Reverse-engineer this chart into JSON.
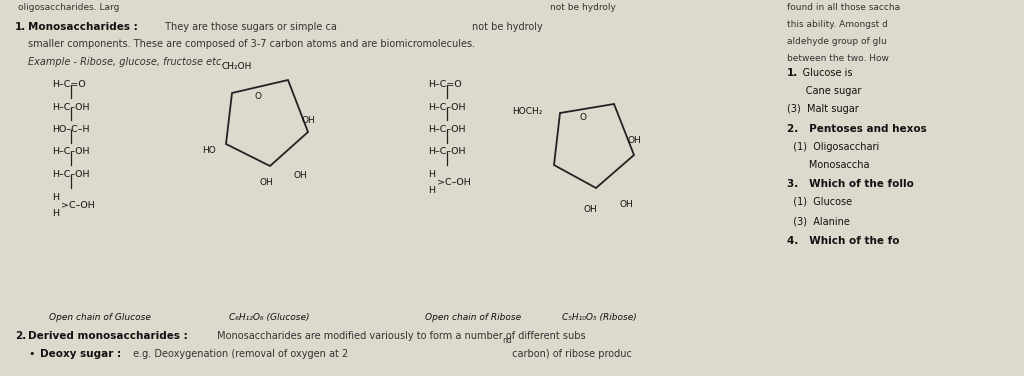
{
  "page_bg": "#ddd9cc",
  "label_glucose_chain": "Open chain of Glucose",
  "label_glucose_ring": "C₆H₁₂O₆ (Glucose)",
  "label_ribose_chain": "Open chain of Ribose",
  "label_ribose_ring": "C₅H₁₀O₅ (Ribose)",
  "top_left": "oligosaccharides. Larg",
  "top_right_partial": "not be hydroly",
  "right_col": [
    "found in all those saccha",
    "this ability. Amongst d",
    "aldehyde group of glu",
    "between the two. How"
  ],
  "item1_num": "1.",
  "item1_bold": "Monosaccharides :",
  "item1_rest": " They are those sugars or simple ca",
  "item1_rest2": "not be hydroly",
  "item1_line2": "smaller components. These are composed of 3-7 carbon atoms and are biomicromolecules.",
  "example_line": "Example - Ribose, glucose, fructose etc.",
  "glucose_chain": [
    "H–C=O",
    "H–C–OH",
    "HO–C–H",
    "H–C–OH",
    "H–C–OH"
  ],
  "ribose_chain": [
    "H–C=O",
    "H–C–OH",
    "H–C–OH",
    "H–C–OH"
  ],
  "item2_num": "2.",
  "item2_bold": "Derived monosaccharides :",
  "item2_rest": " Monosaccharides are modified variously to form a number of different subs",
  "deoxy_bold": "Deoxy sugar :",
  "deoxy_rest": " e.g. Deoxygenation (removal of oxygen at 2",
  "deoxy_super": "nd",
  "deoxy_rest2": " carbon) of ribose produc",
  "mcq": [
    [
      3.08,
      "1.",
      true,
      7.5
    ],
    [
      3.08,
      "     Glucose is",
      false,
      7.0
    ],
    [
      2.9,
      "      Cane sugar",
      false,
      7.0
    ],
    [
      2.72,
      "(3)  Malt sugar",
      false,
      7.0
    ],
    [
      2.52,
      "2.   Pentoses and hexos",
      true,
      7.5
    ],
    [
      2.34,
      "  (1)  Oligosacchari",
      false,
      7.0
    ],
    [
      2.16,
      "       Monosaccha",
      false,
      7.0
    ],
    [
      1.97,
      "3.   Which of the follo",
      true,
      7.5
    ],
    [
      1.79,
      "  (1)  Glucose",
      false,
      7.0
    ],
    [
      1.6,
      "  (3)  Alanine",
      false,
      7.0
    ],
    [
      1.4,
      "4.   Which of the fo",
      true,
      7.5
    ]
  ]
}
